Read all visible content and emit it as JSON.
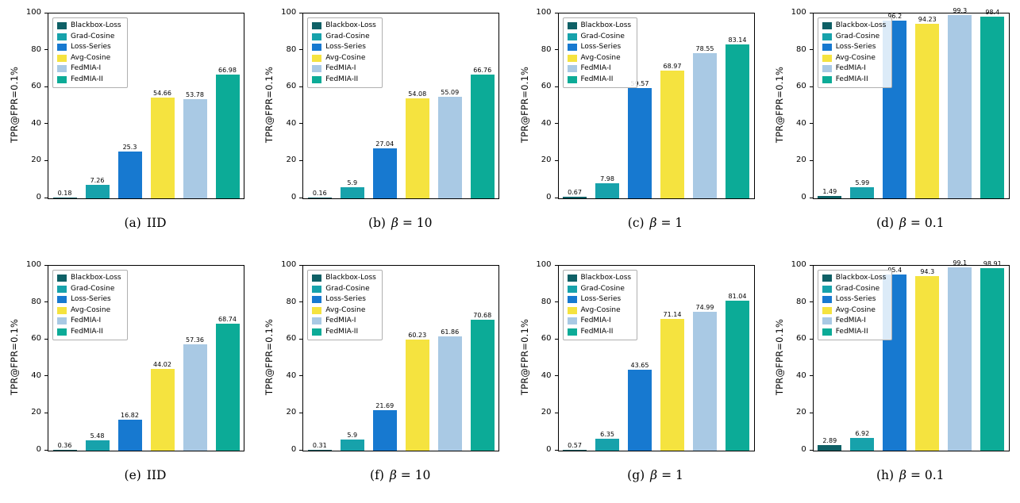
{
  "figure": {
    "background": "#ffffff",
    "axis_color": "#000000"
  },
  "palette": [
    {
      "label": "Blackbox-Loss",
      "color": "#0e6066"
    },
    {
      "label": "Grad-Cosine",
      "color": "#17a2ab"
    },
    {
      "label": "Loss-Series",
      "color": "#1779d0"
    },
    {
      "label": "Avg-Cosine",
      "color": "#f5e33f"
    },
    {
      "label": "FedMIA-I",
      "color": "#a9c9e4"
    },
    {
      "label": "FedMIA-II",
      "color": "#0cab97"
    }
  ],
  "chart_data": [
    {
      "type": "bar",
      "caption": {
        "index": "(a)",
        "parts": [
          {
            "text": "IID",
            "italic": false
          }
        ]
      },
      "ylabel": "TPR@FPR=0.1%",
      "ylim": [
        0,
        100
      ],
      "yticks": [
        0,
        20,
        40,
        60,
        80,
        100
      ],
      "legend_position": "upper left",
      "categories": [
        "Blackbox-Loss",
        "Grad-Cosine",
        "Loss-Series",
        "Avg-Cosine",
        "FedMIA-I",
        "FedMIA-II"
      ],
      "values": [
        0.18,
        7.26,
        25.3,
        54.66,
        53.78,
        66.98
      ]
    },
    {
      "type": "bar",
      "caption": {
        "index": "(b)",
        "parts": [
          {
            "text": "β",
            "italic": true
          },
          {
            "text": " = 10",
            "italic": false
          }
        ]
      },
      "ylabel": "TPR@FPR=0.1%",
      "ylim": [
        0,
        100
      ],
      "yticks": [
        0,
        20,
        40,
        60,
        80,
        100
      ],
      "legend_position": "upper left",
      "categories": [
        "Blackbox-Loss",
        "Grad-Cosine",
        "Loss-Series",
        "Avg-Cosine",
        "FedMIA-I",
        "FedMIA-II"
      ],
      "values": [
        0.16,
        5.9,
        27.04,
        54.08,
        55.09,
        66.76
      ]
    },
    {
      "type": "bar",
      "caption": {
        "index": "(c)",
        "parts": [
          {
            "text": "β",
            "italic": true
          },
          {
            "text": " = 1",
            "italic": false
          }
        ]
      },
      "ylabel": "TPR@FPR=0.1%",
      "ylim": [
        0,
        100
      ],
      "yticks": [
        0,
        20,
        40,
        60,
        80,
        100
      ],
      "legend_position": "upper left",
      "categories": [
        "Blackbox-Loss",
        "Grad-Cosine",
        "Loss-Series",
        "Avg-Cosine",
        "FedMIA-I",
        "FedMIA-II"
      ],
      "values": [
        0.67,
        7.98,
        59.57,
        68.97,
        78.55,
        83.14
      ]
    },
    {
      "type": "bar",
      "caption": {
        "index": "(d)",
        "parts": [
          {
            "text": "β",
            "italic": true
          },
          {
            "text": " = 0.1",
            "italic": false
          }
        ]
      },
      "ylabel": "TPR@FPR=0.1%",
      "ylim": [
        0,
        100
      ],
      "yticks": [
        0,
        20,
        40,
        60,
        80,
        100
      ],
      "legend_position": "upper left",
      "categories": [
        "Blackbox-Loss",
        "Grad-Cosine",
        "Loss-Series",
        "Avg-Cosine",
        "FedMIA-I",
        "FedMIA-II"
      ],
      "values": [
        1.49,
        5.99,
        96.2,
        94.23,
        99.3,
        98.4
      ]
    },
    {
      "type": "bar",
      "caption": {
        "index": "(e)",
        "parts": [
          {
            "text": "IID",
            "italic": false
          }
        ]
      },
      "ylabel": "TPR@FPR=0.1%",
      "ylim": [
        0,
        100
      ],
      "yticks": [
        0,
        20,
        40,
        60,
        80,
        100
      ],
      "legend_position": "upper left",
      "categories": [
        "Blackbox-Loss",
        "Grad-Cosine",
        "Loss-Series",
        "Avg-Cosine",
        "FedMIA-I",
        "FedMIA-II"
      ],
      "values": [
        0.36,
        5.48,
        16.82,
        44.02,
        57.36,
        68.74
      ]
    },
    {
      "type": "bar",
      "caption": {
        "index": "(f)",
        "parts": [
          {
            "text": "β",
            "italic": true
          },
          {
            "text": " = 10",
            "italic": false
          }
        ]
      },
      "ylabel": "TPR@FPR=0.1%",
      "ylim": [
        0,
        100
      ],
      "yticks": [
        0,
        20,
        40,
        60,
        80,
        100
      ],
      "legend_position": "upper left",
      "categories": [
        "Blackbox-Loss",
        "Grad-Cosine",
        "Loss-Series",
        "Avg-Cosine",
        "FedMIA-I",
        "FedMIA-II"
      ],
      "values": [
        0.31,
        5.9,
        21.69,
        60.23,
        61.86,
        70.68
      ]
    },
    {
      "type": "bar",
      "caption": {
        "index": "(g)",
        "parts": [
          {
            "text": "β",
            "italic": true
          },
          {
            "text": " = 1",
            "italic": false
          }
        ]
      },
      "ylabel": "TPR@FPR=0.1%",
      "ylim": [
        0,
        100
      ],
      "yticks": [
        0,
        20,
        40,
        60,
        80,
        100
      ],
      "legend_position": "upper left",
      "categories": [
        "Blackbox-Loss",
        "Grad-Cosine",
        "Loss-Series",
        "Avg-Cosine",
        "FedMIA-I",
        "FedMIA-II"
      ],
      "values": [
        0.57,
        6.35,
        43.65,
        71.14,
        74.99,
        81.04
      ]
    },
    {
      "type": "bar",
      "caption": {
        "index": "(h)",
        "parts": [
          {
            "text": "β",
            "italic": true
          },
          {
            "text": " = 0.1",
            "italic": false
          }
        ]
      },
      "ylabel": "TPR@FPR=0.1%",
      "ylim": [
        0,
        100
      ],
      "yticks": [
        0,
        20,
        40,
        60,
        80,
        100
      ],
      "legend_position": "upper left",
      "categories": [
        "Blackbox-Loss",
        "Grad-Cosine",
        "Loss-Series",
        "Avg-Cosine",
        "FedMIA-I",
        "FedMIA-II"
      ],
      "values": [
        2.89,
        6.92,
        95.4,
        94.3,
        99.1,
        98.91
      ]
    }
  ]
}
